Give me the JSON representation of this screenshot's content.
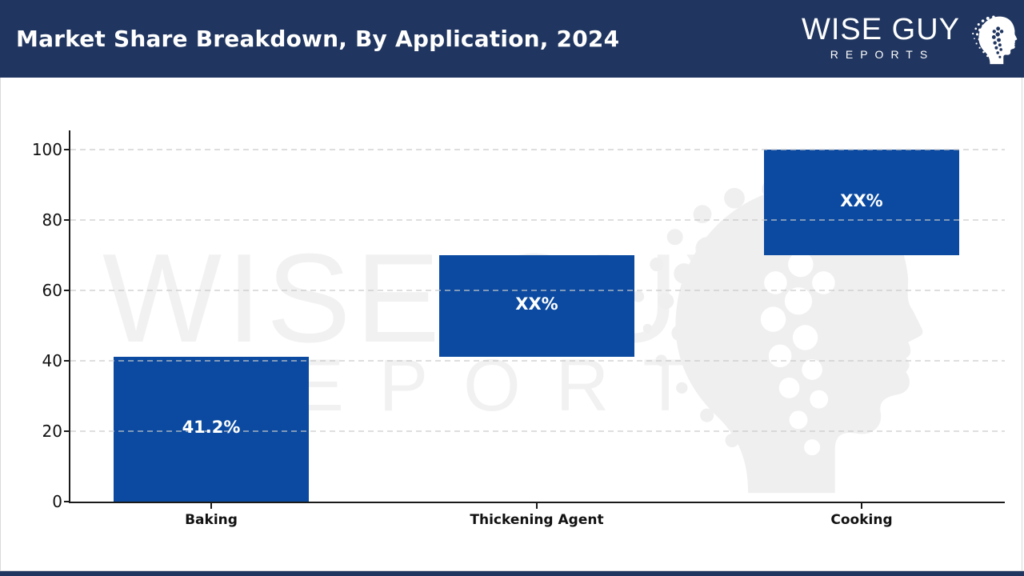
{
  "header": {
    "title": "Market Share Breakdown, By Application, 2024",
    "logo": {
      "wordmark": "WISE GUY",
      "subtitle": "REPORTS"
    }
  },
  "watermark": {
    "wordmark": "WISE GUY",
    "subtitle": "REPORTS"
  },
  "chart_data": {
    "type": "bar",
    "subtype": "waterfall",
    "title": "Market Share Breakdown, By Application, 2024",
    "categories": [
      "Baking",
      "Thickening Agent",
      "Cooking"
    ],
    "segments": [
      {
        "category": "Baking",
        "start": 0,
        "end": 41.2,
        "label": "41.2%"
      },
      {
        "category": "Thickening Agent",
        "start": 41.2,
        "end": 70,
        "label": "XX%"
      },
      {
        "category": "Cooking",
        "start": 70,
        "end": 100,
        "label": "XX%"
      }
    ],
    "yticks": [
      0,
      20,
      40,
      60,
      80,
      100
    ],
    "ylim": [
      0,
      105
    ],
    "grid": "dashed-horizontal",
    "legend": "none",
    "bar_color": "#0B4AA0",
    "value_label_color": "#FFFFFF",
    "colors": {
      "header_navy": "#20355F",
      "gridline": "#CDCDCD",
      "axis": "#1A1A1A",
      "watermark": "#F1F1F1"
    }
  }
}
